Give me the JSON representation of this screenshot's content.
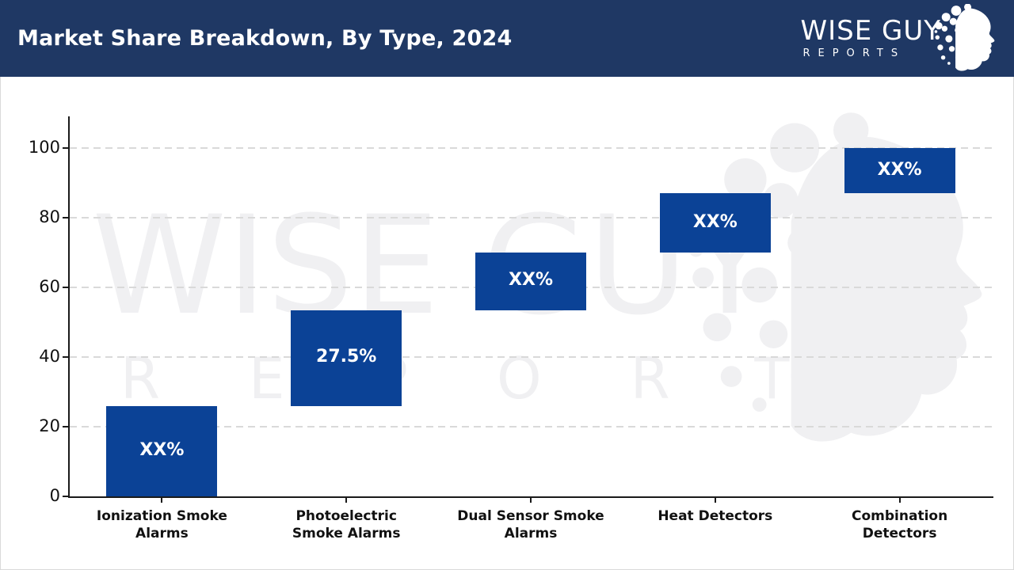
{
  "header": {
    "title": "Market Share Breakdown, By Type, 2024",
    "logo": {
      "line1": "WISE GUY",
      "line2": "REPORTS"
    }
  },
  "watermark": {
    "line1": "WISE GUY",
    "line2": "REPORTS"
  },
  "colors": {
    "header_bg": "#1f3864",
    "header_text": "#ffffff",
    "bar": "#0b4296",
    "bar_label": "#ffffff",
    "axis": "#1a1a1a",
    "grid": "#d9d9d9",
    "tick_text": "#111111",
    "watermark": "#f0f0f2"
  },
  "chart_data": {
    "type": "bar",
    "subtype": "waterfall",
    "title": "Market Share Breakdown, By Type, 2024",
    "categories": [
      "Ionization Smoke Alarms",
      "Photoelectric Smoke Alarms",
      "Dual Sensor Smoke Alarms",
      "Heat Detectors",
      "Combination Detectors"
    ],
    "tick_label_lines": [
      [
        "Ionization Smoke",
        "Alarms"
      ],
      [
        "Photoelectric",
        "Smoke Alarms"
      ],
      [
        "Dual Sensor Smoke",
        "Alarms"
      ],
      [
        "Heat Detectors"
      ],
      [
        "Combination",
        "Detectors"
      ]
    ],
    "segments": [
      {
        "category": "Ionization Smoke Alarms",
        "start": 0,
        "end": 26,
        "label": "XX%"
      },
      {
        "category": "Photoelectric Smoke Alarms",
        "start": 26,
        "end": 53.5,
        "label": "27.5%"
      },
      {
        "category": "Dual Sensor Smoke Alarms",
        "start": 53.5,
        "end": 70,
        "label": "XX%"
      },
      {
        "category": "Heat Detectors",
        "start": 70,
        "end": 87,
        "label": "XX%"
      },
      {
        "category": "Combination Detectors",
        "start": 87,
        "end": 100,
        "label": "XX%"
      }
    ],
    "ylim": [
      0,
      100
    ],
    "yticks": [
      0,
      20,
      40,
      60,
      80,
      100
    ],
    "xlabel": "",
    "ylabel": "",
    "grid": "horizontal-dashed",
    "legend": null
  }
}
